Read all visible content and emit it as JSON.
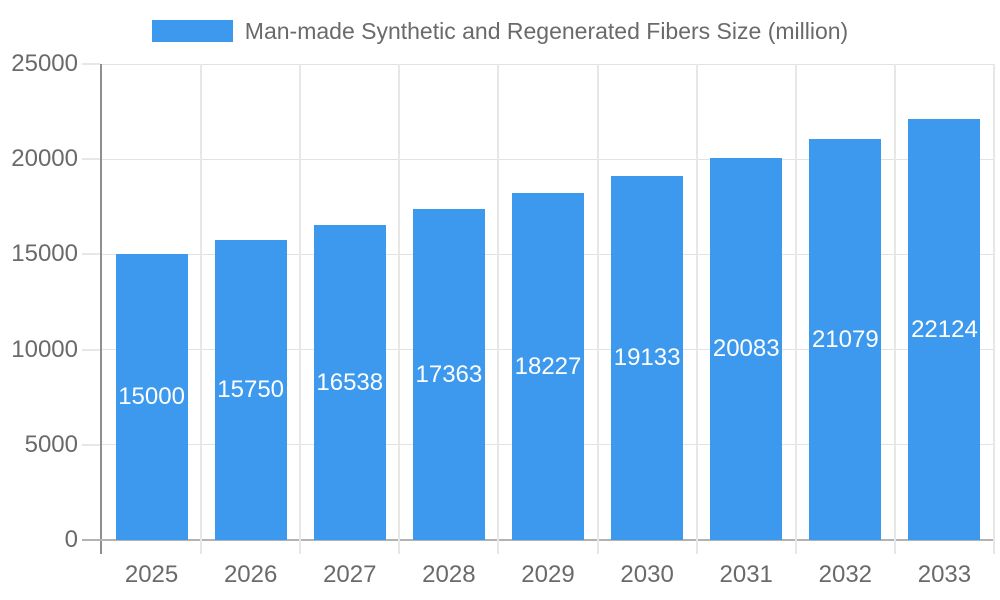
{
  "chart_data": {
    "type": "bar",
    "title": "",
    "legend": "Man-made Synthetic and Regenerated Fibers Size (million)",
    "legend_position": "top",
    "categories": [
      "2025",
      "2026",
      "2027",
      "2028",
      "2029",
      "2030",
      "2031",
      "2032",
      "2033"
    ],
    "values": [
      15000,
      15750,
      16538,
      17363,
      18227,
      19133,
      20083,
      21079,
      22124
    ],
    "value_labels": [
      "15000",
      "15750",
      "16538",
      "17363",
      "18227",
      "19133",
      "20083",
      "21079",
      "22124"
    ],
    "xlabel": "",
    "ylabel": "",
    "ylim": [
      0,
      25000
    ],
    "yticks": [
      0,
      5000,
      10000,
      15000,
      20000,
      25000
    ],
    "grid": true,
    "colors": {
      "bar": "#3C99EE",
      "value_label_text": "#FFFFFF",
      "axis_text": "#6A6A6A",
      "gridline": "#E7E7E7",
      "y_axis_line": "#8F8F8F",
      "x_axis_line": "#B3B3B3",
      "background": "#FFFFFF"
    }
  }
}
